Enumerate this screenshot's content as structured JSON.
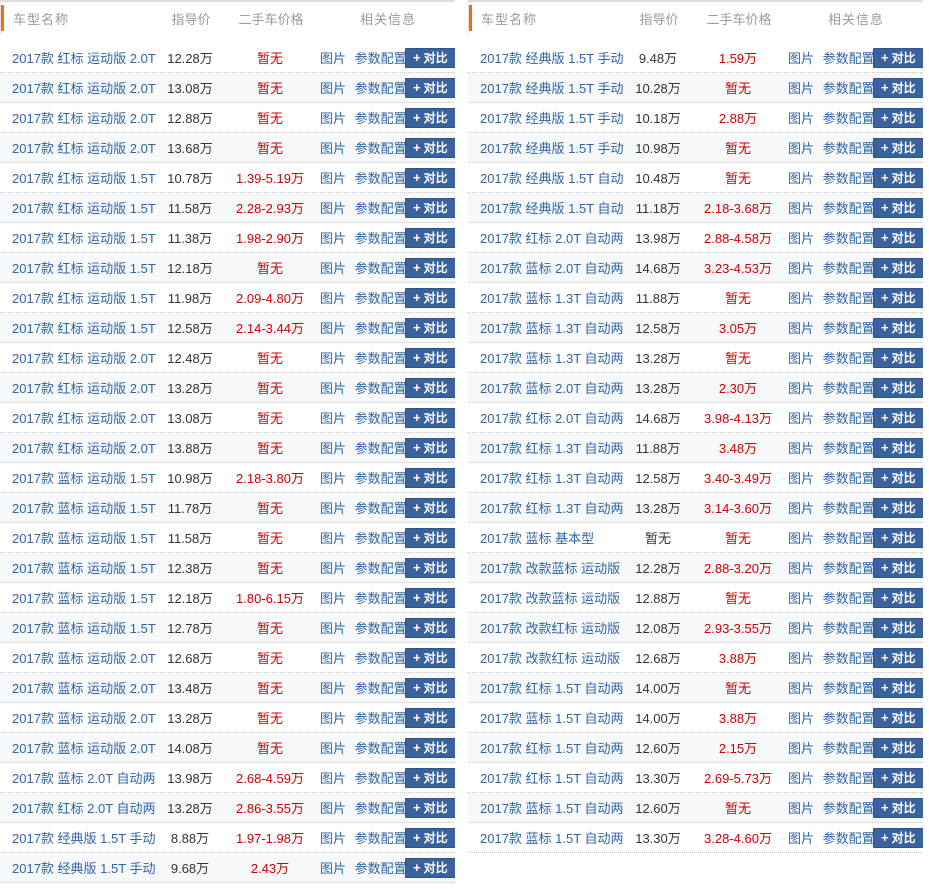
{
  "header": {
    "columns": [
      "车型名称",
      "指导价",
      "二手车价格",
      "相关信息"
    ]
  },
  "links": {
    "image": "图片",
    "config": "参数配置",
    "compare": "对比",
    "plus": "+"
  },
  "colors": {
    "link_blue": "#2f65a4",
    "guide_price_dark": "#333333",
    "used_price_red": "#cc0000",
    "accent_orange": "#f07300",
    "compare_button_bg": "#3a639e",
    "alt_row_bg": "#f6f8fa",
    "header_text_gray": "#9a9a9a"
  },
  "tables": [
    {
      "rows": [
        {
          "name": "2017款 红标 运动版 2.0T",
          "guide": "12.28万",
          "used": "暂无"
        },
        {
          "name": "2017款 红标 运动版 2.0T",
          "guide": "13.08万",
          "used": "暂无"
        },
        {
          "name": "2017款 红标 运动版 2.0T",
          "guide": "12.88万",
          "used": "暂无"
        },
        {
          "name": "2017款 红标 运动版 2.0T",
          "guide": "13.68万",
          "used": "暂无"
        },
        {
          "name": "2017款 红标 运动版 1.5T",
          "guide": "10.78万",
          "used": "1.39-5.19万"
        },
        {
          "name": "2017款 红标 运动版 1.5T",
          "guide": "11.58万",
          "used": "2.28-2.93万"
        },
        {
          "name": "2017款 红标 运动版 1.5T",
          "guide": "11.38万",
          "used": "1.98-2.90万"
        },
        {
          "name": "2017款 红标 运动版 1.5T",
          "guide": "12.18万",
          "used": "暂无"
        },
        {
          "name": "2017款 红标 运动版 1.5T",
          "guide": "11.98万",
          "used": "2.09-4.80万"
        },
        {
          "name": "2017款 红标 运动版 1.5T",
          "guide": "12.58万",
          "used": "2.14-3.44万"
        },
        {
          "name": "2017款 红标 运动版 2.0T",
          "guide": "12.48万",
          "used": "暂无"
        },
        {
          "name": "2017款 红标 运动版 2.0T",
          "guide": "13.28万",
          "used": "暂无"
        },
        {
          "name": "2017款 红标 运动版 2.0T",
          "guide": "13.08万",
          "used": "暂无"
        },
        {
          "name": "2017款 红标 运动版 2.0T",
          "guide": "13.88万",
          "used": "暂无"
        },
        {
          "name": "2017款 蓝标 运动版 1.5T",
          "guide": "10.98万",
          "used": "2.18-3.80万"
        },
        {
          "name": "2017款 蓝标 运动版 1.5T",
          "guide": "11.78万",
          "used": "暂无"
        },
        {
          "name": "2017款 蓝标 运动版 1.5T",
          "guide": "11.58万",
          "used": "暂无"
        },
        {
          "name": "2017款 蓝标 运动版 1.5T",
          "guide": "12.38万",
          "used": "暂无"
        },
        {
          "name": "2017款 蓝标 运动版 1.5T",
          "guide": "12.18万",
          "used": "1.80-6.15万"
        },
        {
          "name": "2017款 蓝标 运动版 1.5T",
          "guide": "12.78万",
          "used": "暂无"
        },
        {
          "name": "2017款 蓝标 运动版 2.0T",
          "guide": "12.68万",
          "used": "暂无"
        },
        {
          "name": "2017款 蓝标 运动版 2.0T",
          "guide": "13.48万",
          "used": "暂无"
        },
        {
          "name": "2017款 蓝标 运动版 2.0T",
          "guide": "13.28万",
          "used": "暂无"
        },
        {
          "name": "2017款 蓝标 运动版 2.0T",
          "guide": "14.08万",
          "used": "暂无"
        },
        {
          "name": "2017款 蓝标 2.0T 自动两",
          "guide": "13.98万",
          "used": "2.68-4.59万"
        },
        {
          "name": "2017款 红标 2.0T 自动两",
          "guide": "13.28万",
          "used": "2.86-3.55万"
        },
        {
          "name": "2017款 经典版 1.5T 手动",
          "guide": "8.88万",
          "used": "1.97-1.98万"
        },
        {
          "name": "2017款 经典版 1.5T 手动",
          "guide": "9.68万",
          "used": "2.43万"
        }
      ]
    },
    {
      "rows": [
        {
          "name": "2017款 经典版 1.5T 手动",
          "guide": "9.48万",
          "used": "1.59万"
        },
        {
          "name": "2017款 经典版 1.5T 手动",
          "guide": "10.28万",
          "used": "暂无"
        },
        {
          "name": "2017款 经典版 1.5T 手动",
          "guide": "10.18万",
          "used": "2.88万"
        },
        {
          "name": "2017款 经典版 1.5T 手动",
          "guide": "10.98万",
          "used": "暂无"
        },
        {
          "name": "2017款 经典版 1.5T 自动",
          "guide": "10.48万",
          "used": "暂无"
        },
        {
          "name": "2017款 经典版 1.5T 自动",
          "guide": "11.18万",
          "used": "2.18-3.68万"
        },
        {
          "name": "2017款 红标 2.0T 自动两",
          "guide": "13.98万",
          "used": "2.88-4.58万"
        },
        {
          "name": "2017款 蓝标 2.0T 自动两",
          "guide": "14.68万",
          "used": "3.23-4.53万"
        },
        {
          "name": "2017款 蓝标 1.3T 自动两",
          "guide": "11.88万",
          "used": "暂无"
        },
        {
          "name": "2017款 蓝标 1.3T 自动两",
          "guide": "12.58万",
          "used": "3.05万"
        },
        {
          "name": "2017款 蓝标 1.3T 自动两",
          "guide": "13.28万",
          "used": "暂无"
        },
        {
          "name": "2017款 蓝标 2.0T 自动两",
          "guide": "13.28万",
          "used": "2.30万"
        },
        {
          "name": "2017款 红标 2.0T 自动两",
          "guide": "14.68万",
          "used": "3.98-4.13万"
        },
        {
          "name": "2017款 红标 1.3T 自动两",
          "guide": "11.88万",
          "used": "3.48万"
        },
        {
          "name": "2017款 红标 1.3T 自动两",
          "guide": "12.58万",
          "used": "3.40-3.49万"
        },
        {
          "name": "2017款 红标 1.3T 自动两",
          "guide": "13.28万",
          "used": "3.14-3.60万"
        },
        {
          "name": "2017款 蓝标 基本型",
          "guide": "暂无",
          "used": "暂无"
        },
        {
          "name": "2017款 改款蓝标 运动版",
          "guide": "12.28万",
          "used": "2.88-3.20万"
        },
        {
          "name": "2017款 改款蓝标 运动版",
          "guide": "12.88万",
          "used": "暂无"
        },
        {
          "name": "2017款 改款红标 运动版",
          "guide": "12.08万",
          "used": "2.93-3.55万"
        },
        {
          "name": "2017款 改款红标 运动版",
          "guide": "12.68万",
          "used": "3.88万"
        },
        {
          "name": "2017款 红标 1.5T 自动两",
          "guide": "14.00万",
          "used": "暂无"
        },
        {
          "name": "2017款 蓝标 1.5T 自动两",
          "guide": "14.00万",
          "used": "3.88万"
        },
        {
          "name": "2017款 红标 1.5T 自动两",
          "guide": "12.60万",
          "used": "2.15万"
        },
        {
          "name": "2017款 红标 1.5T 自动两",
          "guide": "13.30万",
          "used": "2.69-5.73万"
        },
        {
          "name": "2017款 蓝标 1.5T 自动两",
          "guide": "12.60万",
          "used": "暂无"
        },
        {
          "name": "2017款 蓝标 1.5T 自动两",
          "guide": "13.30万",
          "used": "3.28-4.60万"
        }
      ]
    }
  ]
}
